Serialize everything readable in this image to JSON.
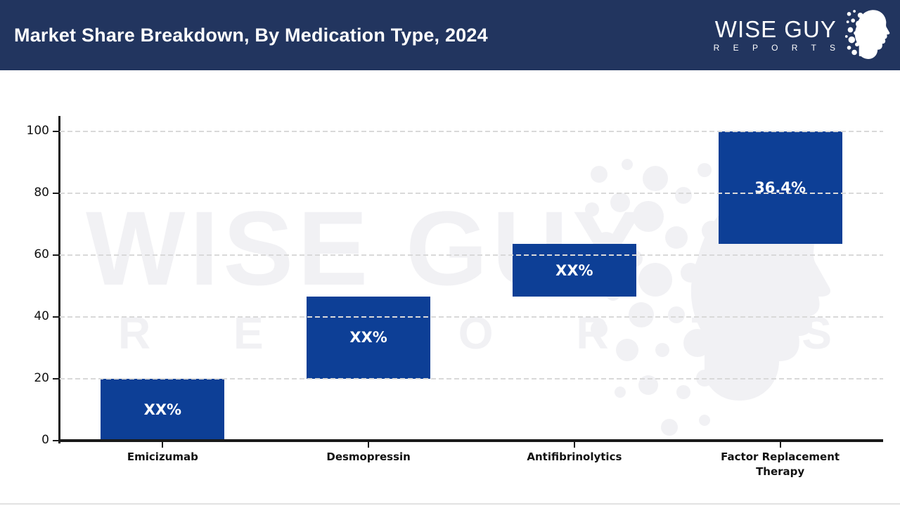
{
  "header": {
    "title": "Market Share Breakdown, By Medication Type, 2024",
    "bg_color": "#22355F",
    "text_color": "#FFFFFF",
    "logo": {
      "line1": "WISE GUY",
      "line2": "R E P O R T S"
    }
  },
  "watermark": {
    "line1": "WISE GUY",
    "line2": "R E P O R T S",
    "color": "#F1F1F4"
  },
  "chart_data": {
    "type": "bar",
    "subtype": "waterfall",
    "title": "Market Share Breakdown, By Medication Type, 2024",
    "categories": [
      "Emicizumab",
      "Desmopressin",
      "Antifibrinolytics",
      "Factor Replacement Therapy"
    ],
    "segments": [
      {
        "category": "Emicizumab",
        "start": 0,
        "end": 20,
        "label": "XX%"
      },
      {
        "category": "Desmopressin",
        "start": 20,
        "end": 46.6,
        "label": "XX%"
      },
      {
        "category": "Antifibrinolytics",
        "start": 46.6,
        "end": 63.6,
        "label": "XX%"
      },
      {
        "category": "Factor Replacement Therapy",
        "start": 63.6,
        "end": 100,
        "label": "36.4%"
      }
    ],
    "yticks": [
      0,
      20,
      40,
      60,
      80,
      100
    ],
    "ylim": [
      0,
      100
    ],
    "xlabel": "",
    "ylabel": "",
    "grid": true,
    "legend": false,
    "bar_color": "#0D3F96",
    "bar_label_color": "#FFFFFF",
    "gridline_color": "#D9D9D9",
    "axis_color": "#1A1A1A"
  }
}
